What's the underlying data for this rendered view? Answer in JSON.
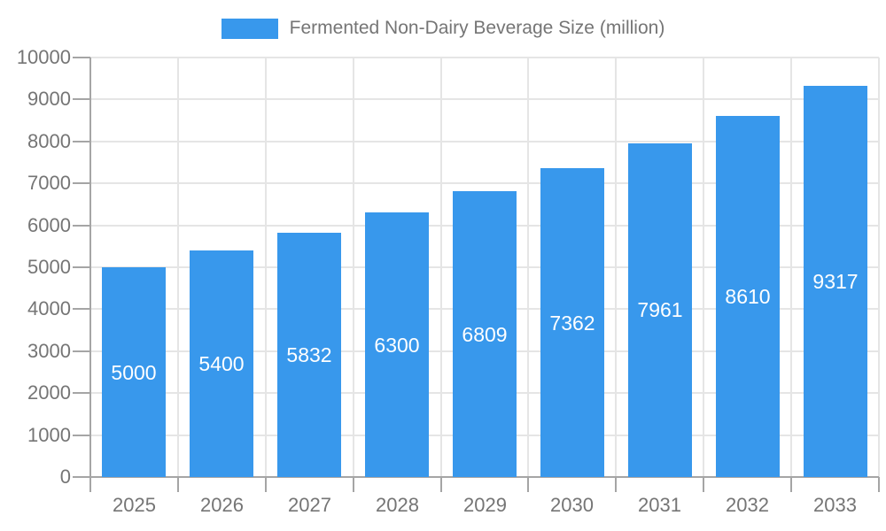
{
  "chart_data": {
    "type": "bar",
    "title": "Fermented Non-Dairy Beverage Size (million)",
    "categories": [
      "2025",
      "2026",
      "2027",
      "2028",
      "2029",
      "2030",
      "2031",
      "2032",
      "2033"
    ],
    "series": [
      {
        "name": "Fermented Non-Dairy Beverage Size (million)",
        "values": [
          5000,
          5400,
          5832,
          6300,
          6809,
          7362,
          7961,
          8610,
          9317
        ]
      }
    ],
    "value_labels": [
      "5000",
      "5400",
      "5832",
      "6300",
      "6809",
      "7362",
      "7961",
      "8610",
      "9317"
    ],
    "xlabel": "",
    "ylabel": "",
    "ylim": [
      0,
      10000
    ],
    "ytick_interval": 1000,
    "ytick_labels": [
      "0",
      "1000",
      "2000",
      "3000",
      "4000",
      "5000",
      "6000",
      "7000",
      "8000",
      "9000",
      "10000"
    ],
    "grid": true,
    "legend_position": "top-center",
    "colors": {
      "bar": "#3898EC",
      "value_label": "#FFFFFF",
      "axis": "#A5A5A5",
      "grid": "#E5E5E5",
      "tick_text": "#757575",
      "legend_text": "#757575",
      "background": "#FFFFFF"
    }
  }
}
